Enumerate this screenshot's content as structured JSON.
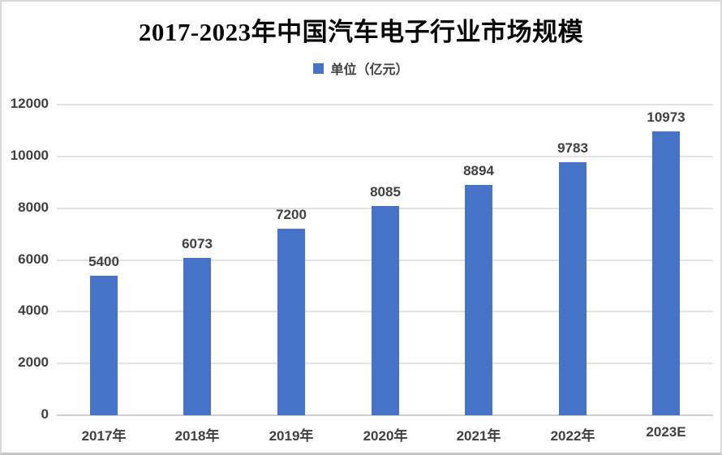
{
  "chart_data": {
    "type": "bar",
    "title": "2017-2023年中国汽车电子行业市场规模",
    "legend": [
      {
        "label": "单位（亿元）",
        "color": "#4573C8"
      }
    ],
    "legend_position": "top",
    "categories": [
      "2017年",
      "2018年",
      "2019年",
      "2020年",
      "2021年",
      "2022年",
      "2023E"
    ],
    "values": [
      5400,
      6073,
      7200,
      8085,
      8894,
      9783,
      10973
    ],
    "xlabel": "",
    "ylabel": "",
    "ylim": [
      0,
      12000
    ],
    "yticks": [
      0,
      2000,
      4000,
      6000,
      8000,
      10000,
      12000
    ],
    "grid": true,
    "colors": {
      "bar": "#4573C8",
      "data_label": "#404040",
      "tick_label": "#404040",
      "gridline": "#e2e2e2",
      "axis_line": "#cfcfcf",
      "title": "#050505",
      "legend_text": "#404040"
    }
  }
}
